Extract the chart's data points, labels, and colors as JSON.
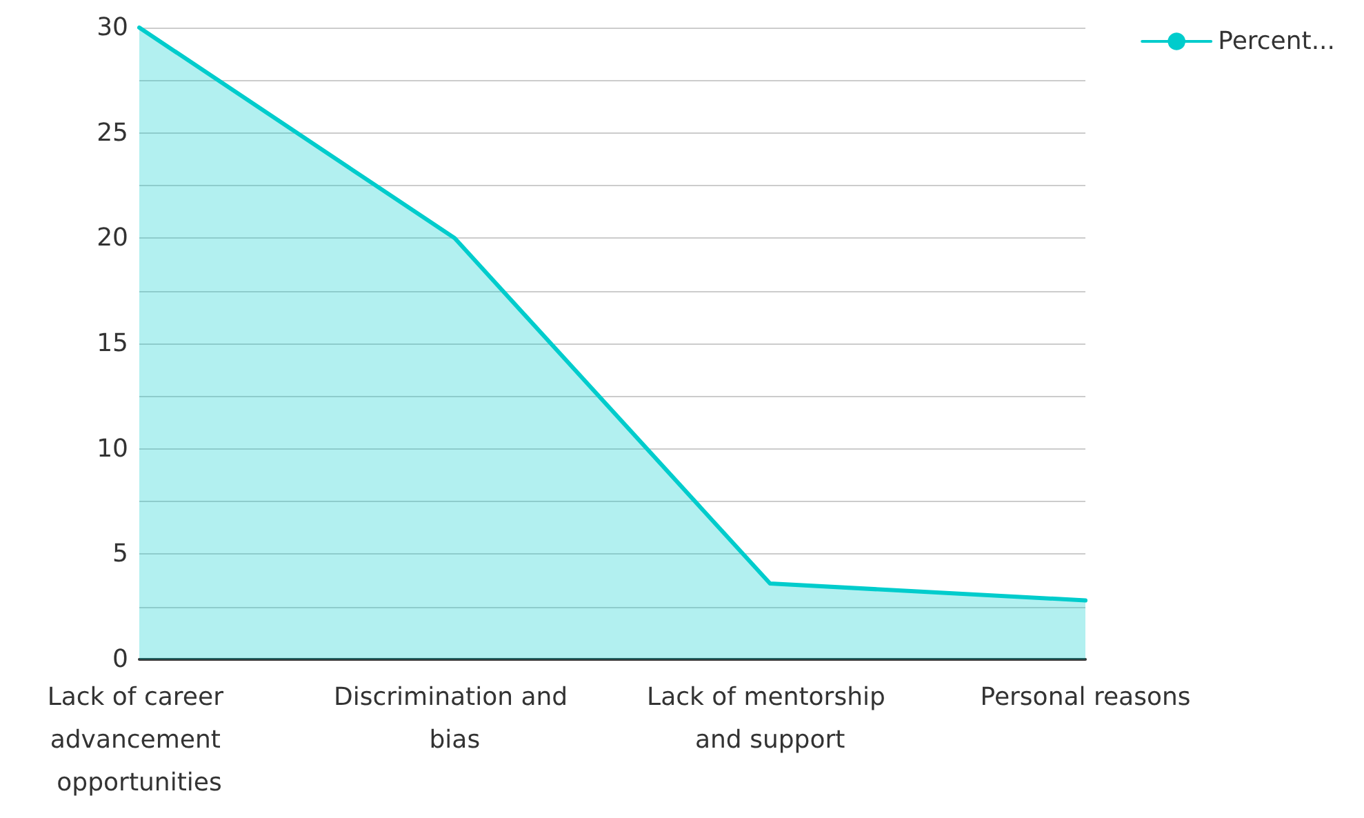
{
  "chart_data": {
    "type": "area",
    "categories": [
      "Lack of career advancement opportunities",
      "Discrimination and bias",
      "Lack of mentorship and support",
      "Personal reasons"
    ],
    "series": [
      {
        "name": "Percent...",
        "color": "#00cccc",
        "values": [
          30,
          20,
          3.6,
          2.8
        ]
      }
    ],
    "ylim": [
      0,
      30
    ],
    "yticks": [
      0,
      {
        "value": 2.5,
        "label": null
      },
      5,
      {
        "value": 7.5,
        "label": null
      },
      10,
      {
        "value": 12.5,
        "label": null
      },
      15,
      {
        "value": 17.5,
        "label": null
      },
      20,
      {
        "value": 22.5,
        "label": null
      },
      25,
      {
        "value": 27.5,
        "label": null
      },
      30
    ],
    "grid": "y",
    "legend": "top right",
    "marker": "none",
    "line_style": "solid"
  }
}
